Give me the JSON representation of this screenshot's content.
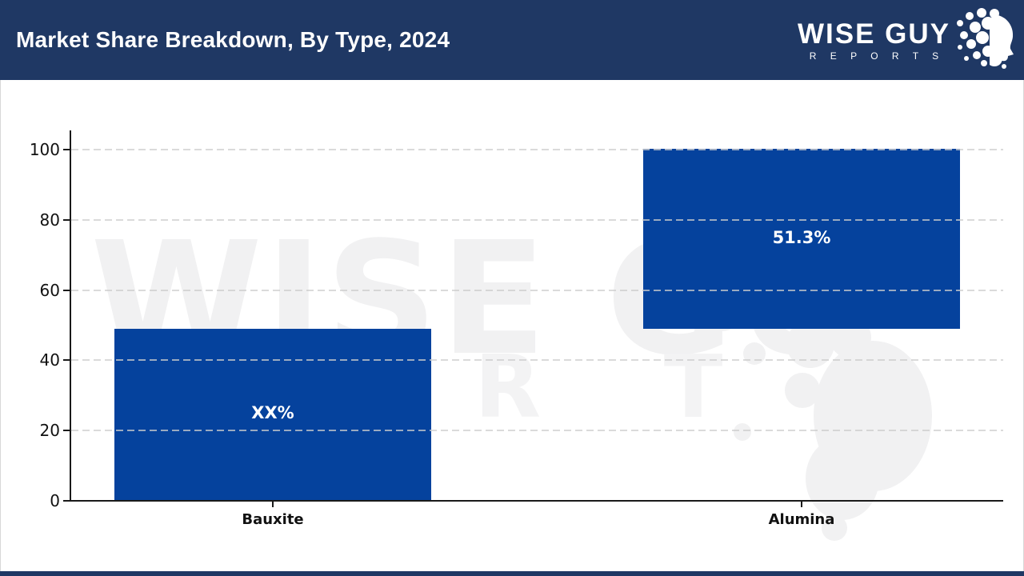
{
  "header": {
    "title": "Market Share Breakdown, By Type, 2024",
    "logo_line1": "WISE GUY",
    "logo_line2": "R E P O R T S"
  },
  "watermark": {
    "line1": "WISE GU",
    "line2": "R T S"
  },
  "colors": {
    "header_bg": "#1f3864",
    "footer_bg": "#1f3864",
    "bar": "#05429d",
    "axis": "#1a1a1a",
    "grid": "#dcdcdc",
    "watermark": "#f1f1f2"
  },
  "chart_data": {
    "type": "bar",
    "stacked": true,
    "title": "Market Share Breakdown, By Type, 2024",
    "categories": [
      "Bauxite",
      "Alumina"
    ],
    "series": [
      {
        "name": "Bauxite",
        "segment": [
          0,
          48.7
        ],
        "value": 48.7,
        "label": "XX%"
      },
      {
        "name": "Alumina",
        "segment": [
          48.7,
          100
        ],
        "value": 51.3,
        "label": "51.3%"
      }
    ],
    "yticks": [
      0,
      20,
      40,
      60,
      80,
      100
    ],
    "ylim": [
      0,
      105
    ],
    "xlabel": "",
    "ylabel": "",
    "grid": "horizontal-dashed",
    "legend": "none",
    "bar_color": "#05429d"
  }
}
